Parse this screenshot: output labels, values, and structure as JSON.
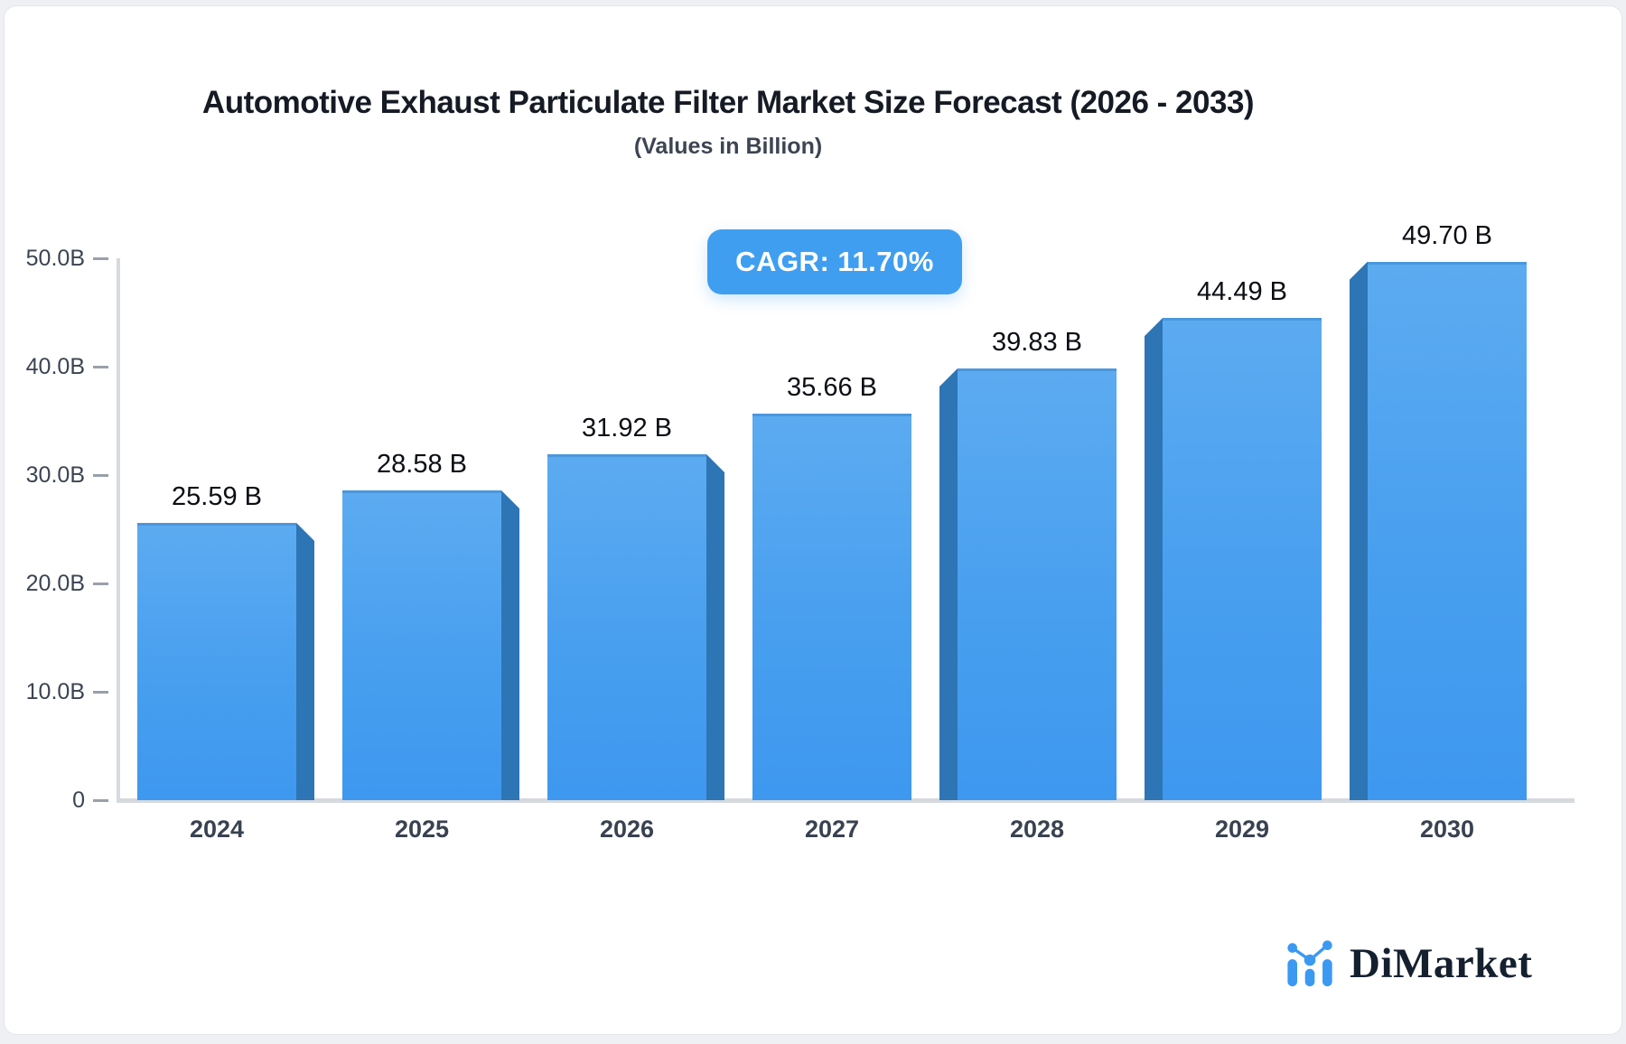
{
  "header": {
    "title": "Automotive Exhaust Particulate Filter Market Size Forecast (2026 - 2033)",
    "subtitle": "(Values in Billion)"
  },
  "badge": {
    "label": "CAGR: 11.70%",
    "background": "#3f9ef0",
    "text_color": "#ffffff"
  },
  "chart_data": {
    "type": "bar",
    "title": "Automotive Exhaust Particulate Filter Market Size Forecast (2026 - 2033)",
    "subtitle": "(Values in Billion)",
    "categories": [
      "2024",
      "2025",
      "2026",
      "2027",
      "2028",
      "2029",
      "2030"
    ],
    "values": [
      25.59,
      28.58,
      31.92,
      35.66,
      39.83,
      44.49,
      49.7
    ],
    "value_labels": [
      "25.59 B",
      "28.58 B",
      "31.92 B",
      "35.66 B",
      "39.83 B",
      "44.49 B",
      "49.70 B"
    ],
    "y_ticks": [
      "50.0B",
      "40.0B",
      "30.0B",
      "20.0B",
      "10.0B",
      "0"
    ],
    "ylim": [
      0,
      50
    ],
    "xlabel": "",
    "ylabel": "",
    "grid": false,
    "legend": "none",
    "cagr": "11.70%",
    "bar_face_color_top": "#5cabf1",
    "bar_face_color_bottom": "#3e98ef",
    "bar_side_color": "#2e75b5",
    "axis_color": "#d6d9de",
    "style_note": "pseudo-3D extruded bars; side face on right for left bars, on left for right bars"
  },
  "logo": {
    "text": "DiMarket",
    "icon": "bar-line-chart-icon",
    "text_color": "#15202f",
    "accent_color": "#3b99f2"
  }
}
